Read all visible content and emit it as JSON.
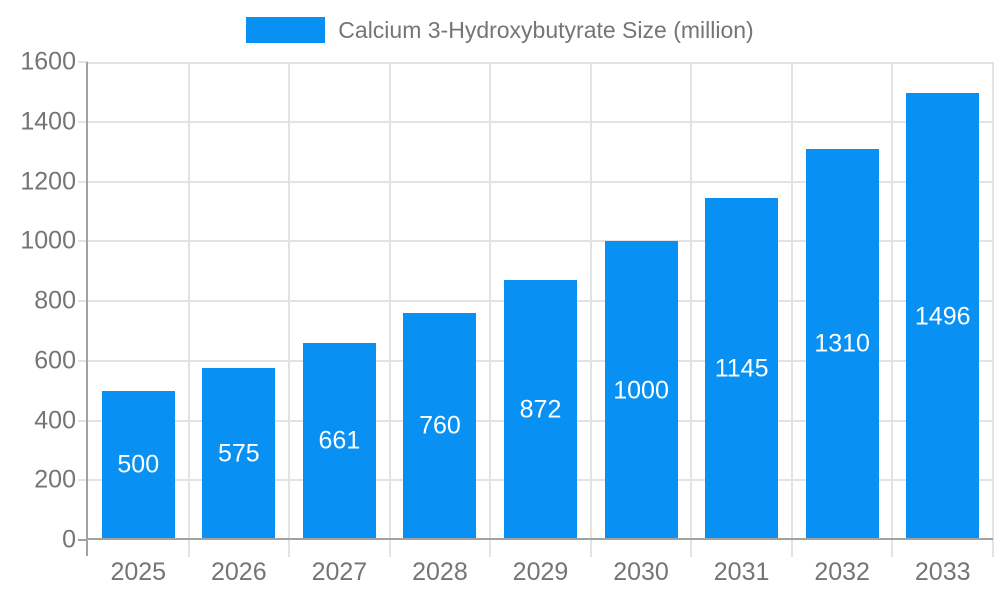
{
  "chart_data": {
    "type": "bar",
    "title": "Calcium 3-Hydroxybutyrate Size (million)",
    "legend_entries": [
      "Calcium 3-Hydroxybutyrate Size (million)"
    ],
    "legend_position": "top",
    "categories": [
      "2025",
      "2026",
      "2027",
      "2028",
      "2029",
      "2030",
      "2031",
      "2032",
      "2033"
    ],
    "series": [
      {
        "name": "Calcium 3-Hydroxybutyrate Size (million)",
        "values": [
          500,
          575,
          661,
          760,
          872,
          1000,
          1145,
          1310,
          1496
        ]
      }
    ],
    "values": [
      500,
      575,
      661,
      760,
      872,
      1000,
      1145,
      1310,
      1496
    ],
    "value_labels": [
      "500",
      "575",
      "661",
      "760",
      "872",
      "1000",
      "1145",
      "1310",
      "1496"
    ],
    "xlabel": "",
    "ylabel": "",
    "ylim": [
      0,
      1600
    ],
    "yticks": [
      0,
      200,
      400,
      600,
      800,
      1000,
      1200,
      1400,
      1600
    ],
    "grid": true,
    "colors": {
      "bar": "#0890f2",
      "value_label": "#ffffff",
      "axis_text": "#757575",
      "grid": "#e3e3e3",
      "axis": "#a2a2a2",
      "background": "#ffffff"
    }
  }
}
